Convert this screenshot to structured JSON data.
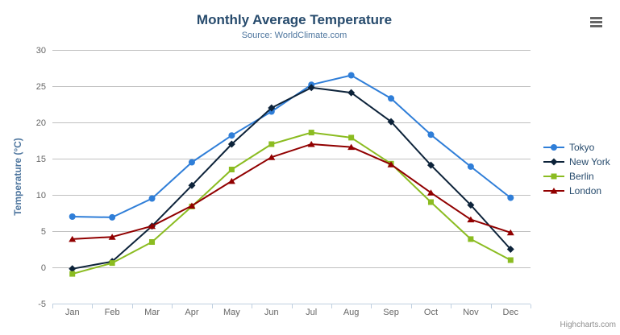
{
  "header": {
    "title": "Monthly Average Temperature",
    "subtitle": "Source: WorldClimate.com"
  },
  "credits": "Highcharts.com",
  "chart_data": {
    "type": "line",
    "title": "Monthly Average Temperature",
    "subtitle": "Source: WorldClimate.com",
    "categories": [
      "Jan",
      "Feb",
      "Mar",
      "Apr",
      "May",
      "Jun",
      "Jul",
      "Aug",
      "Sep",
      "Oct",
      "Nov",
      "Dec"
    ],
    "series": [
      {
        "name": "Tokyo",
        "color": "#2f7ed8",
        "marker": "circle",
        "values": [
          7.0,
          6.9,
          9.5,
          14.5,
          18.2,
          21.5,
          25.2,
          26.5,
          23.3,
          18.3,
          13.9,
          9.6
        ]
      },
      {
        "name": "New York",
        "color": "#0d233a",
        "marker": "diamond",
        "values": [
          -0.2,
          0.8,
          5.7,
          11.3,
          17.0,
          22.0,
          24.8,
          24.1,
          20.1,
          14.1,
          8.6,
          2.5
        ]
      },
      {
        "name": "Berlin",
        "color": "#8bbc21",
        "marker": "square",
        "values": [
          -0.9,
          0.6,
          3.5,
          8.4,
          13.5,
          17.0,
          18.6,
          17.9,
          14.3,
          9.0,
          3.9,
          1.0
        ]
      },
      {
        "name": "London",
        "color": "#910000",
        "marker": "triangle",
        "values": [
          3.9,
          4.2,
          5.7,
          8.5,
          11.9,
          15.2,
          17.0,
          16.6,
          14.2,
          10.3,
          6.6,
          4.8
        ]
      }
    ],
    "xlabel": "",
    "ylabel": "Temperature (°C)",
    "ylim": [
      -5,
      30
    ],
    "yticks": [
      -5,
      0,
      5,
      10,
      15,
      20,
      25,
      30
    ],
    "grid": true,
    "legend_position": "right",
    "palette": {
      "grid_line": "#c0c0c0",
      "axis_line": "#c0d0e0",
      "tick_label": "#666666",
      "title_text": "#274b6d",
      "subtitle_text": "#4d759e",
      "axis_title_text": "#4d759e",
      "legend_text": "#274b6d",
      "credits_text": "#909090",
      "menu_icon": "#666666"
    }
  }
}
